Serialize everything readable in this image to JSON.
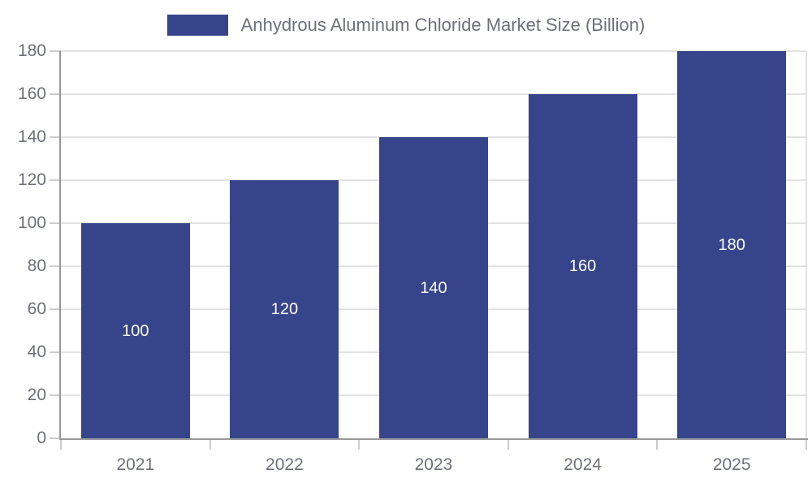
{
  "chart_data": {
    "type": "bar",
    "title": "Anhydrous Aluminum Chloride Market Size (Billion)",
    "legend": [
      "Anhydrous Aluminum Chloride Market Size (Billion)"
    ],
    "legend_position": "top-center",
    "categories": [
      "2021",
      "2022",
      "2023",
      "2024",
      "2025"
    ],
    "values": [
      100,
      120,
      140,
      160,
      180
    ],
    "value_labels": [
      "100",
      "120",
      "140",
      "160",
      "180"
    ],
    "value_labels_inside_bars": true,
    "xlabel": "",
    "ylabel": "",
    "ylim": [
      0,
      180
    ],
    "yticks": [
      0,
      20,
      40,
      60,
      80,
      100,
      120,
      140,
      160,
      180
    ],
    "grid": true,
    "colors": {
      "bar": "#36458b",
      "bar_label_text": "#ffffff",
      "axis_text": "#6e7079",
      "legend_text": "#6e7079",
      "gridline": "#e2e2e2",
      "axis_line": "#999999",
      "tick": "#cccccc",
      "background": "#ffffff"
    }
  }
}
